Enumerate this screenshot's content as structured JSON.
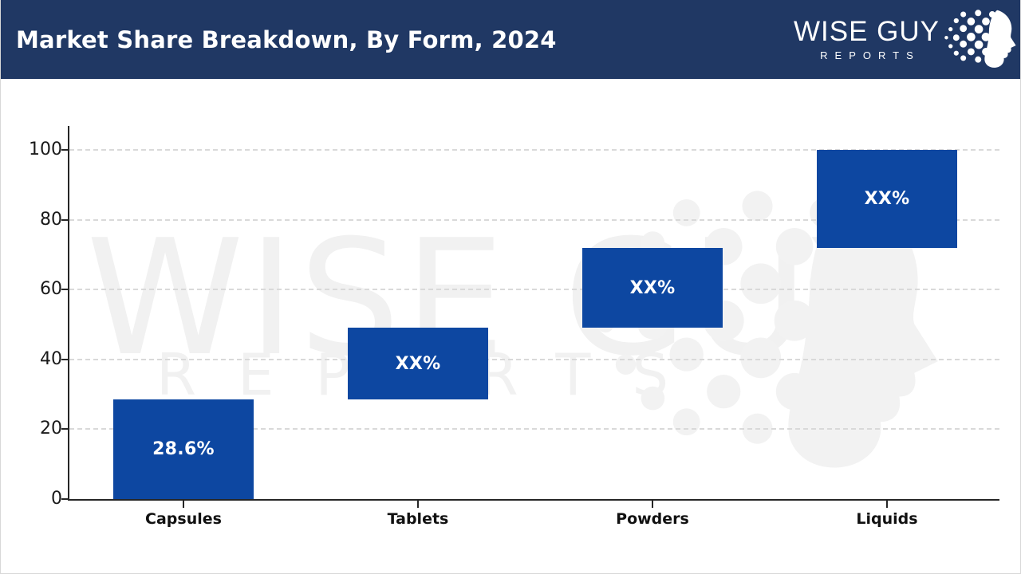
{
  "header": {
    "title": "Market Share Breakdown, By Form, 2024",
    "brand": {
      "name": "WISE GUY",
      "subtitle": "REPORTS"
    }
  },
  "watermark": {
    "line1": "WISE GUY",
    "line2": "REPORTS"
  },
  "chart_data": {
    "type": "bar",
    "variant": "waterfall",
    "title": "Market Share Breakdown, By Form, 2024",
    "categories": [
      "Capsules",
      "Tablets",
      "Powders",
      "Liquids"
    ],
    "bars": [
      {
        "category": "Capsules",
        "start": 0,
        "end": 28.6,
        "label": "28.6%"
      },
      {
        "category": "Tablets",
        "start": 28.6,
        "end": 49,
        "label": "XX%"
      },
      {
        "category": "Powders",
        "start": 49,
        "end": 72,
        "label": "XX%"
      },
      {
        "category": "Liquids",
        "start": 72,
        "end": 100,
        "label": "XX%"
      }
    ],
    "yticks": [
      0,
      20,
      40,
      60,
      80,
      100
    ],
    "ylim": [
      0,
      105
    ],
    "xlabel": "",
    "ylabel": "",
    "grid": "horizontal-dashed",
    "legend": "none",
    "bar_color": "#0d47a1",
    "bar_label_color": "#ffffff",
    "axis_color": "#262626",
    "grid_color": "#d9d9d9",
    "header_color": "#203864"
  }
}
